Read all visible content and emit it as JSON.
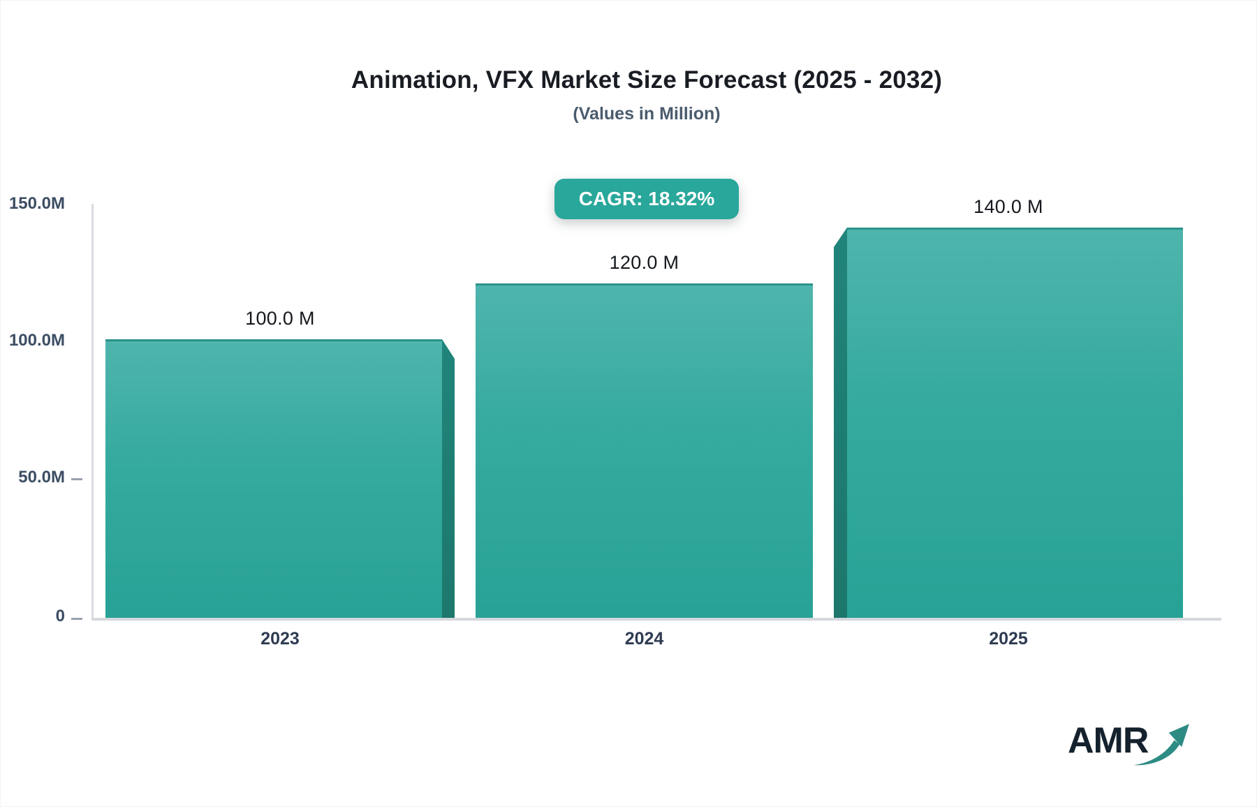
{
  "header": {
    "title": "Animation, VFX Market Size Forecast (2025 - 2032)",
    "subtitle": "(Values in Million)"
  },
  "badge": {
    "label": "CAGR: 18.32%"
  },
  "chart_data": {
    "type": "bar",
    "title": "Animation, VFX Market Size Forecast (2025 - 2032)",
    "subtitle": "(Values in Million)",
    "categories": [
      "2023",
      "2024",
      "2025"
    ],
    "values": [
      100.0,
      120.0,
      140.0
    ],
    "bar_labels": [
      "100.0 M",
      "120.0 M",
      "140.0 M"
    ],
    "unit": "Million (M)",
    "ylim": [
      0,
      150
    ],
    "ytick_labels": [
      "150.0M",
      "100.0M",
      "50.0M",
      "0"
    ],
    "grid": false,
    "legend": false,
    "annotations": [
      "CAGR: 18.32%"
    ]
  },
  "logo": {
    "text": "AMR",
    "arrow_icon": "growth-arrow-icon"
  },
  "colors": {
    "bar_fill_top": "#4fb5ac",
    "bar_fill_bottom": "#28a296",
    "bar_bevel": "#1f7d73",
    "bar_top_edge": "#2a9389",
    "badge_background": "#2aa79b",
    "badge_text": "#ffffff",
    "title_text": "#191d23",
    "subtitle_text": "#4a5b6d",
    "axis_line": "#d5d8dd",
    "tick_text": "#3c4d63",
    "logo_text": "#15222d",
    "logo_arrow": "#2d8b84"
  }
}
